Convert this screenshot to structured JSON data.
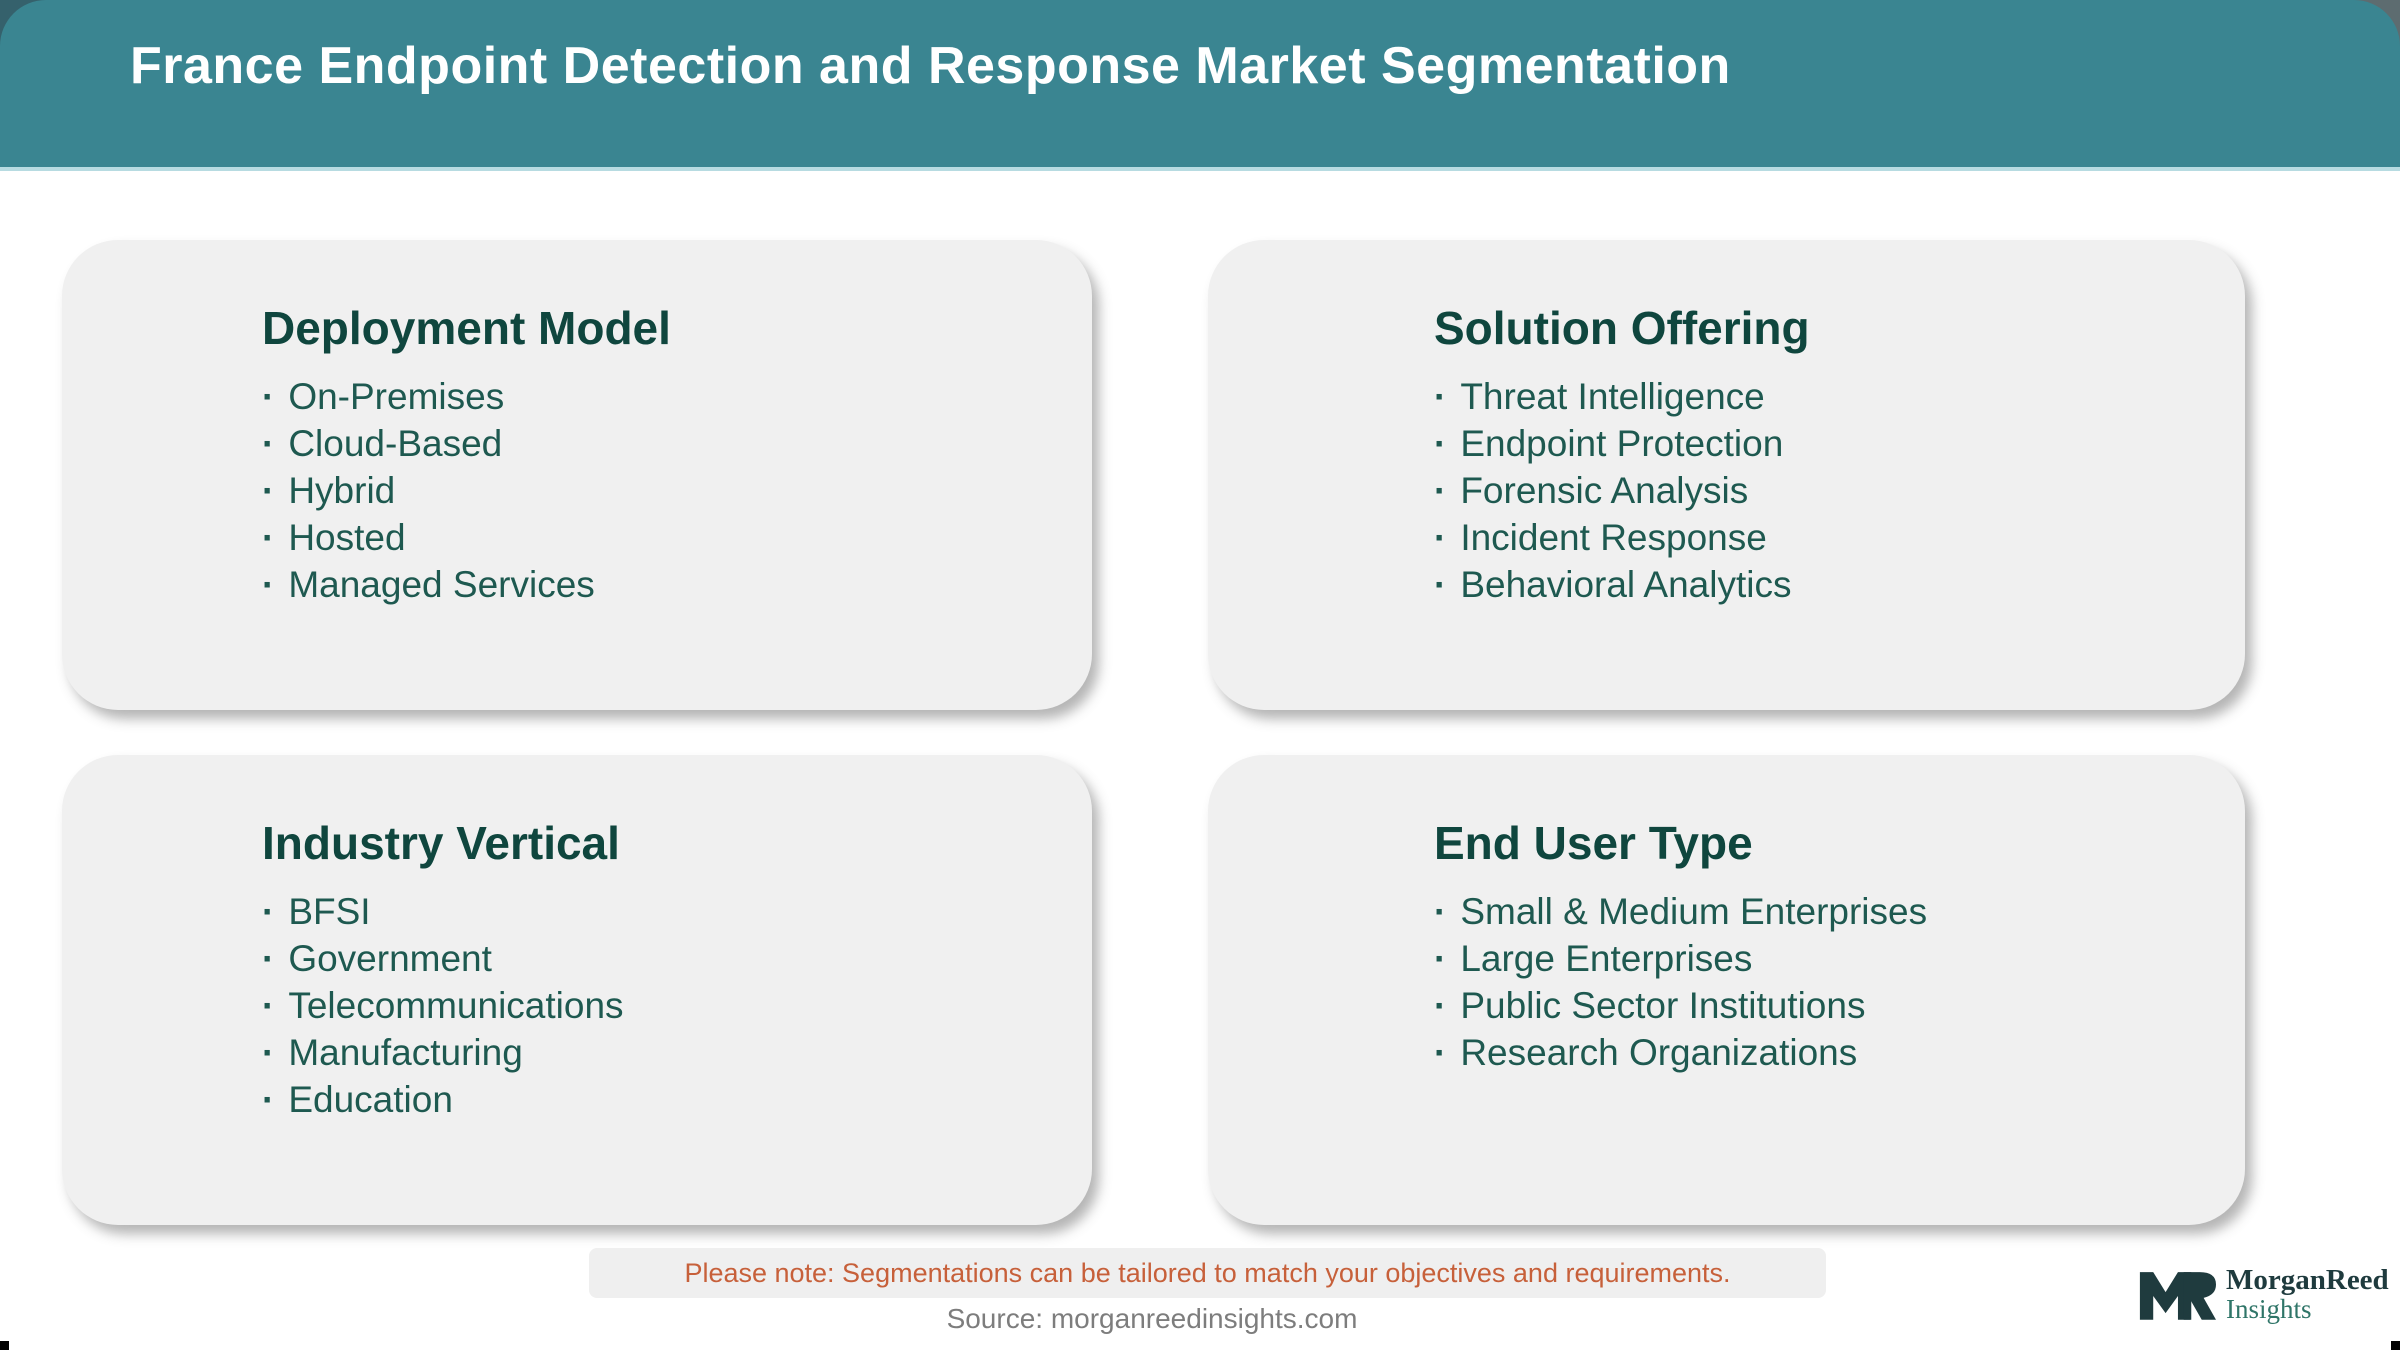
{
  "colors": {
    "header-teal": "#3a8591",
    "header-underline": "#b7dbe1",
    "corner-left-dark": "#35616c",
    "corner-right-dark": "#5d6c70",
    "card-bg": "#f0f0f0",
    "title-green": "#0f463e",
    "item-green": "#1e5950",
    "note-bg": "#efefef",
    "note-orange": "#c7603a",
    "source-gray": "#7d7d7d",
    "logo-dark": "#1f3b3e",
    "logo-teal": "#2f7568",
    "header-text": "#ffffff"
  },
  "header": {
    "title": "France Endpoint Detection and Response Market Segmentation"
  },
  "cards": [
    {
      "title": "Deployment Model",
      "items": [
        "On-Premises",
        "Cloud-Based",
        "Hybrid",
        "Hosted",
        "Managed Services"
      ]
    },
    {
      "title": "Solution Offering",
      "items": [
        "Threat Intelligence",
        "Endpoint Protection",
        "Forensic Analysis",
        "Incident Response",
        "Behavioral Analytics"
      ]
    },
    {
      "title": "Industry Vertical",
      "items": [
        "BFSI",
        "Government",
        "Telecommunications",
        "Manufacturing",
        "Education"
      ]
    },
    {
      "title": "End User Type",
      "items": [
        "Small & Medium Enterprises",
        "Large Enterprises",
        "Public Sector Institutions",
        "Research Organizations"
      ]
    }
  ],
  "footer": {
    "note": "Please note: Segmentations can be tailored to match your objectives and requirements.",
    "source": "Source: morganreedinsights.com"
  },
  "logo": {
    "monogram": "MR",
    "name": "MorganReed",
    "tagline": "Insights"
  }
}
